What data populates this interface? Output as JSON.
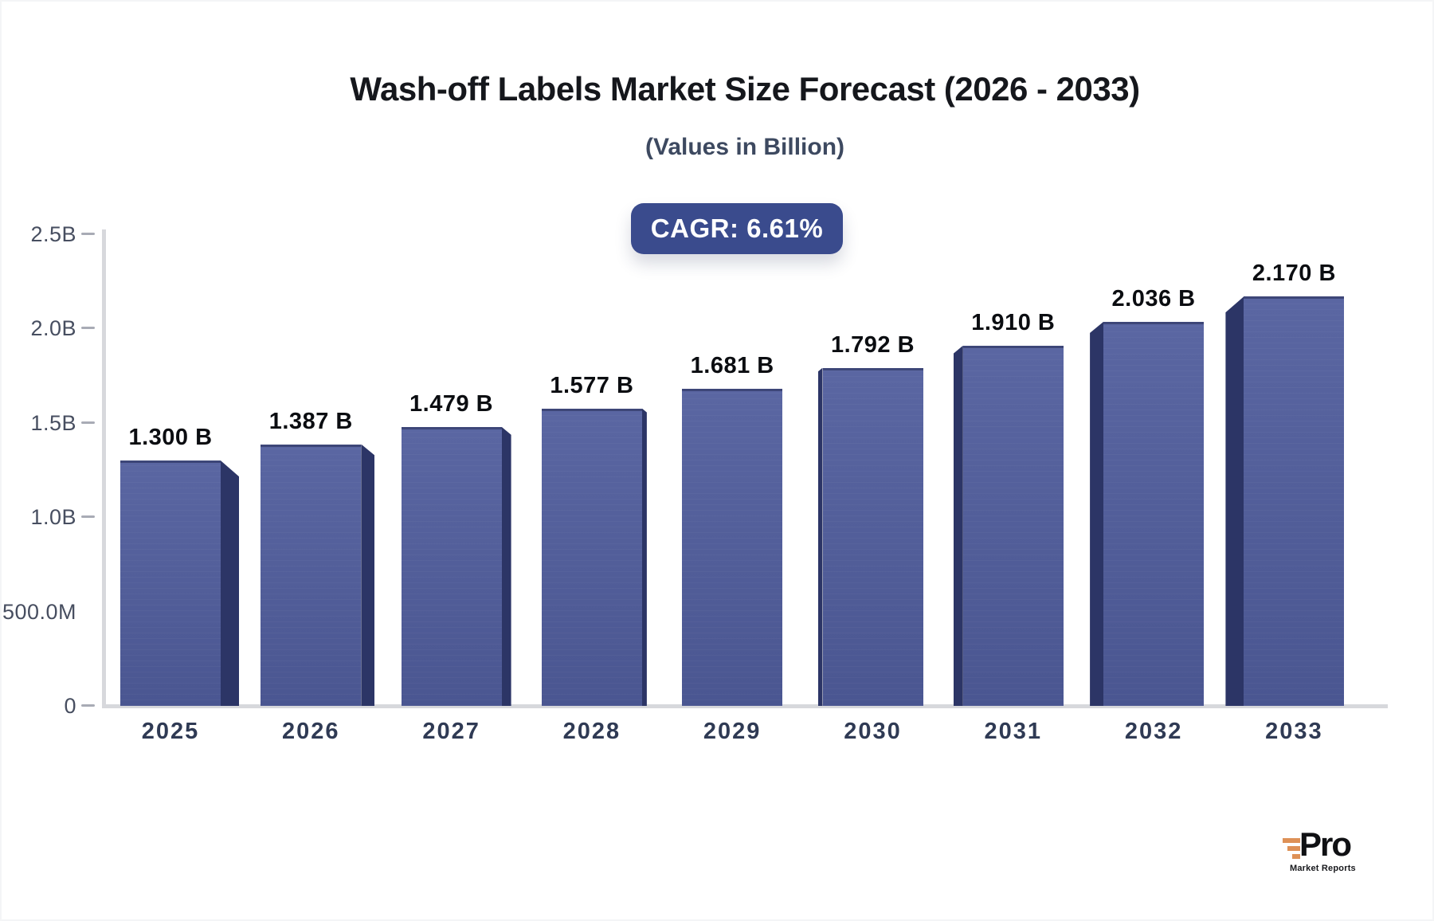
{
  "header": {
    "title": "Wash-off Labels Market Size Forecast (2026 - 2033)",
    "subtitle": "(Values in Billion)",
    "cagr_label": "CAGR: 6.61%"
  },
  "chart_data": {
    "type": "bar",
    "title": "Wash-off Labels Market Size Forecast (2026 - 2033)",
    "subtitle": "(Values in Billion)",
    "cagr_percent": 6.61,
    "categories": [
      "2025",
      "2026",
      "2027",
      "2028",
      "2029",
      "2030",
      "2031",
      "2032",
      "2033"
    ],
    "values": [
      1.3,
      1.387,
      1.479,
      1.577,
      1.681,
      1.792,
      1.91,
      2.036,
      2.17
    ],
    "value_labels": [
      "1.300 B",
      "1.387 B",
      "1.479 B",
      "1.577 B",
      "1.681 B",
      "1.792 B",
      "1.910 B",
      "2.036 B",
      "2.170 B"
    ],
    "ylabel": "",
    "xlabel": "",
    "ylim": [
      0,
      2.5
    ],
    "y_ticks": [
      {
        "value": 2.5,
        "label": "2.5B",
        "tick": true
      },
      {
        "value": 2.0,
        "label": "2.0B",
        "tick": true
      },
      {
        "value": 1.5,
        "label": "1.5B",
        "tick": true
      },
      {
        "value": 1.0,
        "label": "1.0B",
        "tick": true
      },
      {
        "value": 0.5,
        "label": "500.0M",
        "tick": false
      },
      {
        "value": 0,
        "label": "0",
        "tick": true
      }
    ],
    "grid": false,
    "legend": false,
    "bar_style": "3d-center-perspective"
  },
  "colors": {
    "bar_front_top": "#5a66a2",
    "bar_front_bottom": "#4a5691",
    "bar_side": "#2c3566",
    "bar_top_edge": "#3d4678",
    "badge_bg": "#3a4b8d",
    "badge_text": "#ffffff",
    "axis_line": "#d7d8dc",
    "tick_dash": "#a8abb5",
    "title_text": "#15171c",
    "subtitle_text": "#3d4960",
    "y_label_text": "#474e60",
    "year_label_text": "#2f3a54",
    "value_label_text": "#0b0d11",
    "logo_orange": "#de9157"
  },
  "logo": {
    "brand": "Pro",
    "tagline": "Market Reports"
  }
}
